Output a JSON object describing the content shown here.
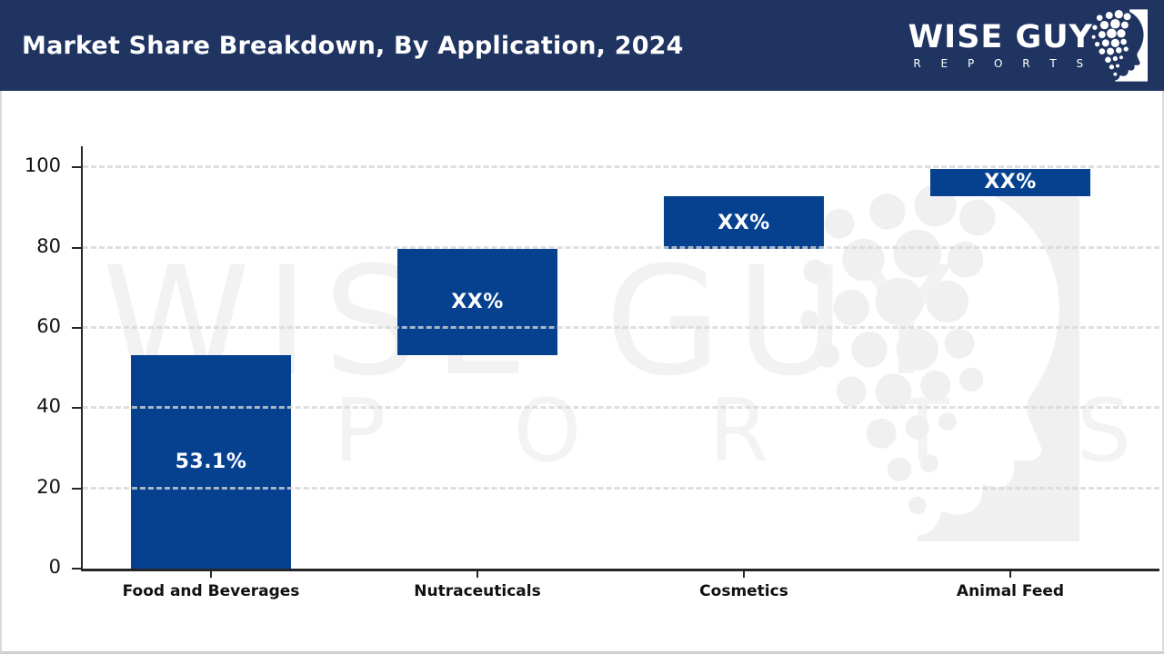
{
  "header": {
    "title": "Market Share Breakdown, By Application, 2024",
    "bg_color": "#203462",
    "logo": {
      "line1": "WISE GUY",
      "line2": "R E P O R T S"
    }
  },
  "watermark": {
    "line1": "WISE GUY",
    "line2": "P O R T S"
  },
  "chart_data": {
    "type": "bar",
    "subtype": "waterfall",
    "title": "Market Share Breakdown, By Application, 2024",
    "xlabel": "",
    "ylabel": "",
    "categories": [
      "Food and Beverages",
      "Nutraceuticals",
      "Cosmetics",
      "Animal Feed"
    ],
    "segments": [
      {
        "category": "Food and Beverages",
        "start": 0,
        "end": 53.1,
        "label": "53.1%"
      },
      {
        "category": "Nutraceuticals",
        "start": 53.1,
        "end": 79.6,
        "label": "XX%"
      },
      {
        "category": "Cosmetics",
        "start": 79.6,
        "end": 92.8,
        "label": "XX%"
      },
      {
        "category": "Animal Feed",
        "start": 92.8,
        "end": 99.7,
        "label": "XX%"
      }
    ],
    "yticks": [
      0,
      20,
      40,
      60,
      80,
      100
    ],
    "ylim": [
      0,
      105.5
    ],
    "bar_color": "#05418f",
    "grid": "dashed-horizontal",
    "legend": "none"
  }
}
